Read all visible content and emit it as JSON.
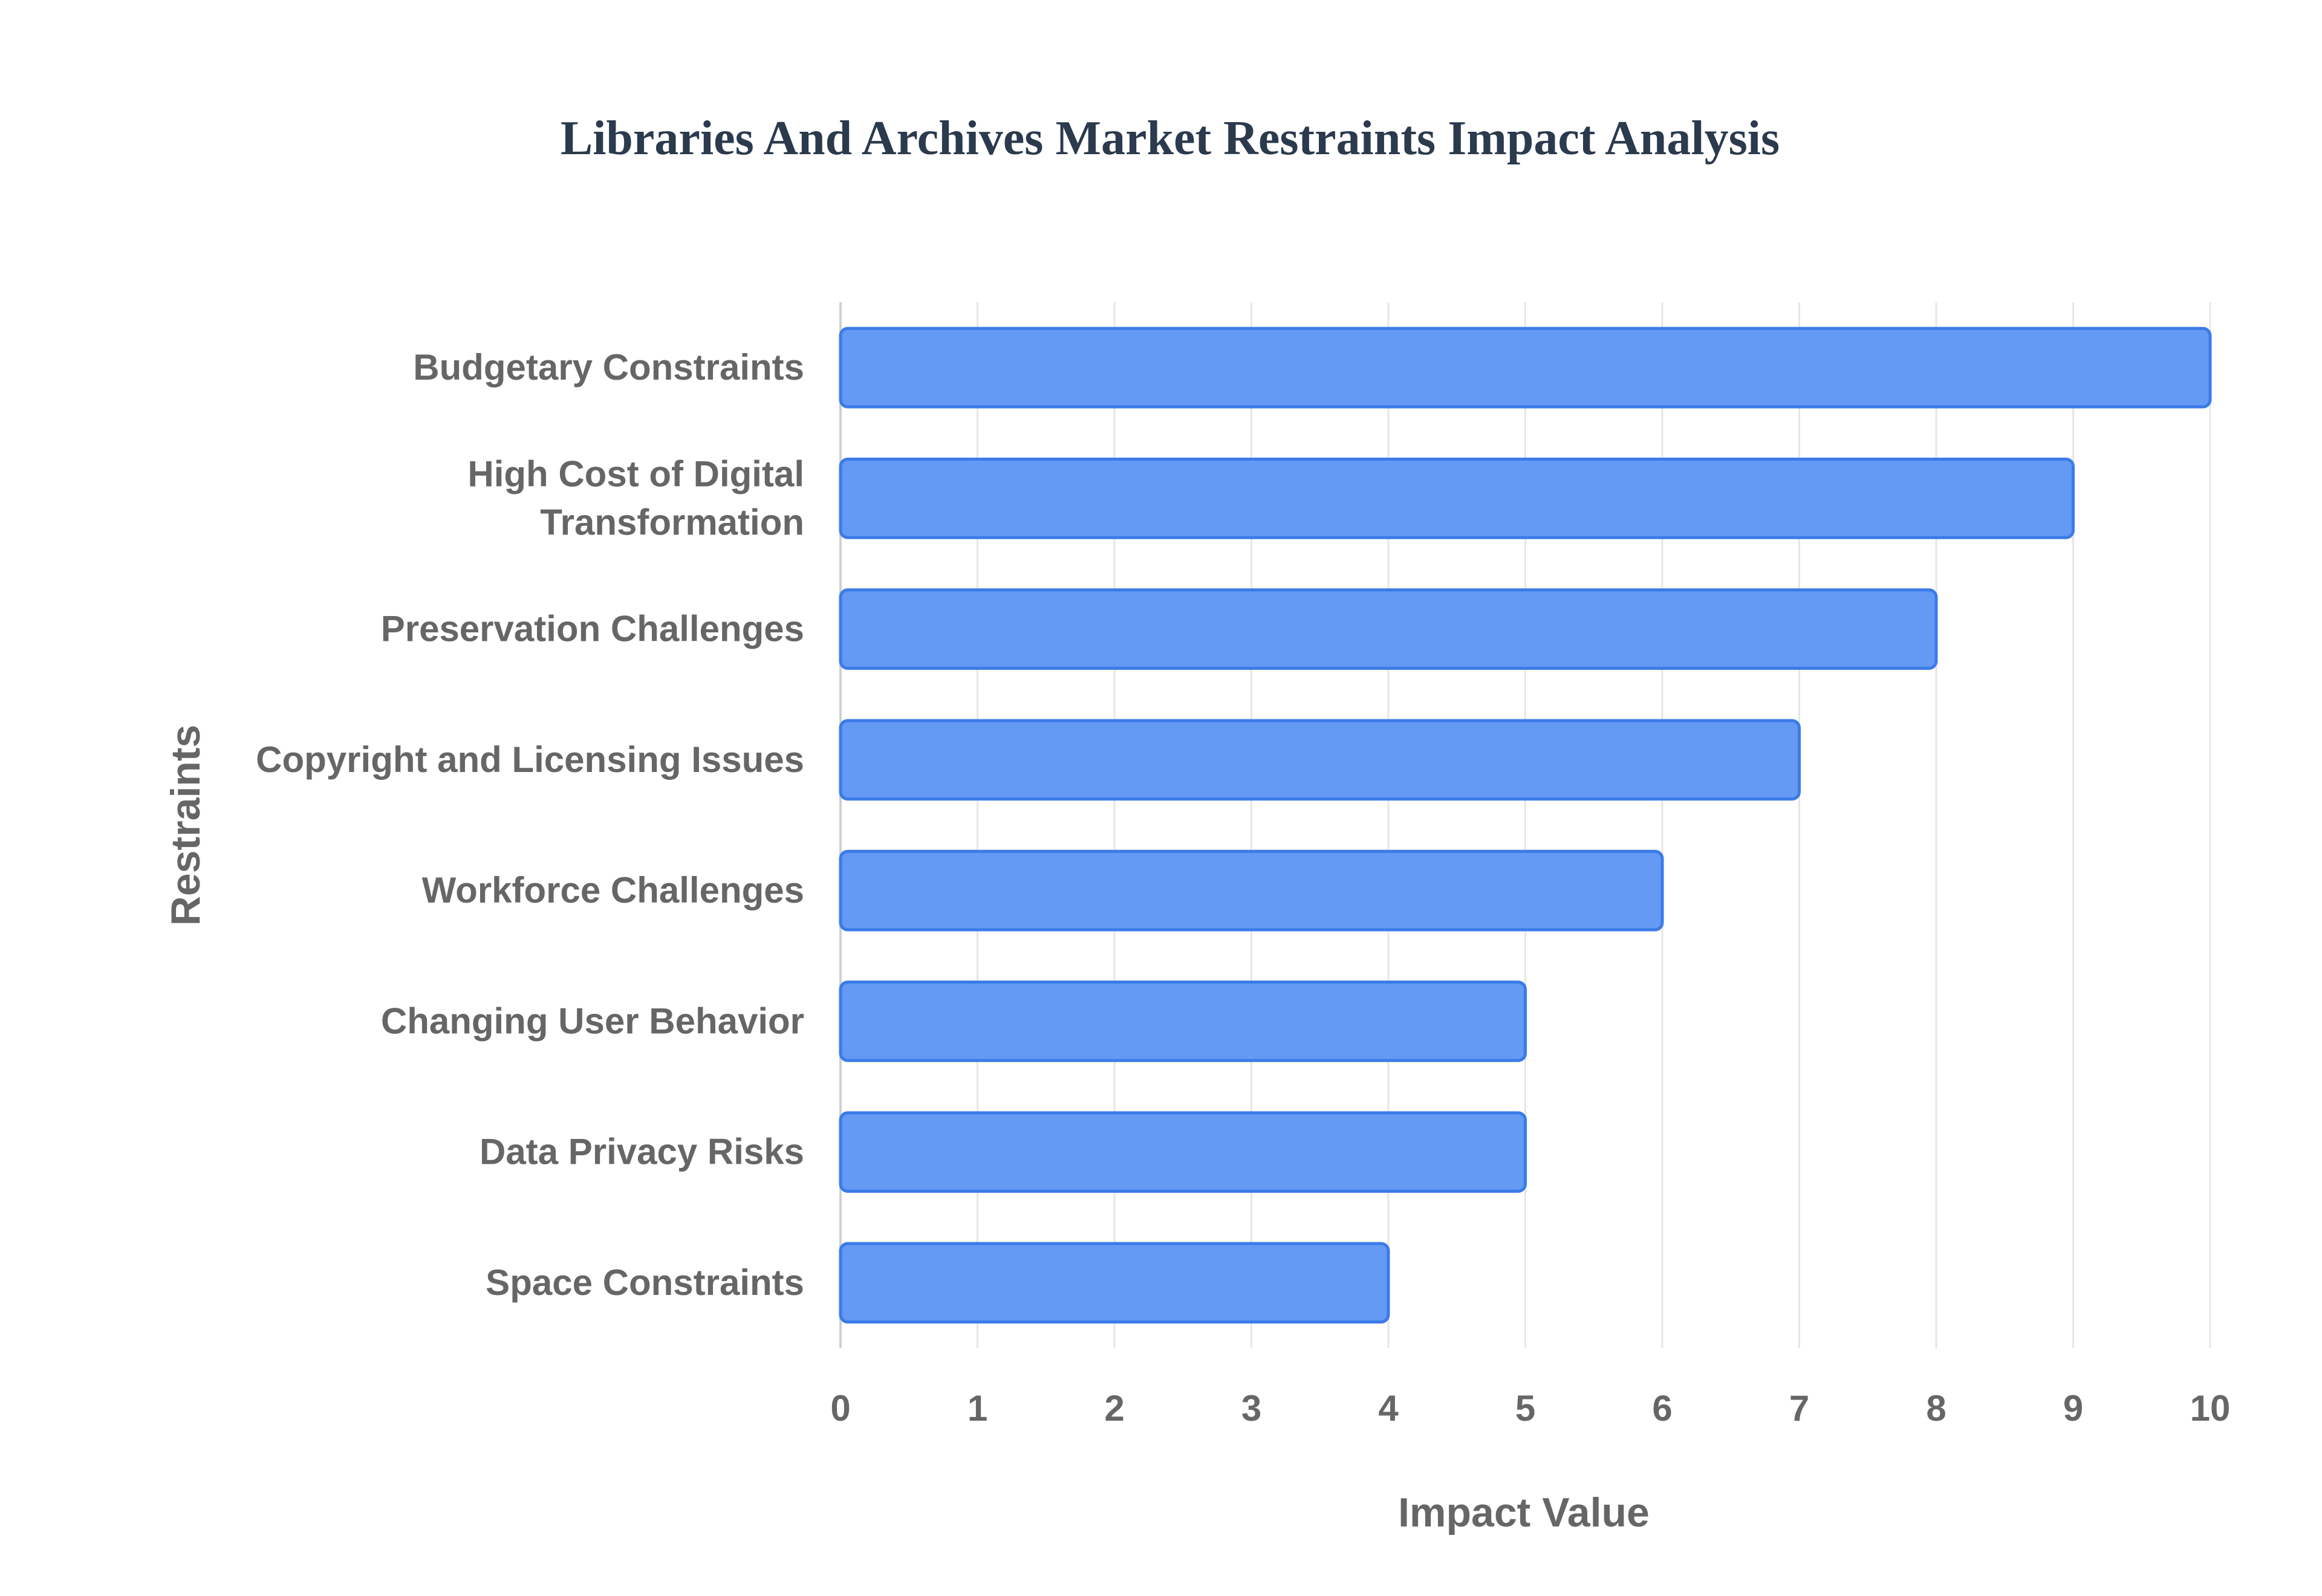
{
  "chart_data": {
    "type": "bar",
    "orientation": "horizontal",
    "title": "Libraries And Archives Market Restraints Impact Analysis",
    "xlabel": "Impact Value",
    "ylabel": "Restraints",
    "xlim": [
      0,
      10
    ],
    "ticks": [
      0,
      1,
      2,
      3,
      4,
      5,
      6,
      7,
      8,
      9,
      10
    ],
    "grid": true,
    "legend": "none",
    "bar_color": "#6499f4",
    "bar_border_color": "#3b7be8",
    "categories": [
      [
        "Budgetary Constraints"
      ],
      [
        "High Cost of Digital",
        "Transformation"
      ],
      [
        "Preservation Challenges"
      ],
      [
        "Copyright and Licensing Issues"
      ],
      [
        "Workforce Challenges"
      ],
      [
        "Changing User Behavior"
      ],
      [
        "Data Privacy Risks"
      ],
      [
        "Space Constraints"
      ]
    ],
    "values": [
      10,
      9,
      8,
      7,
      6,
      5,
      5,
      4
    ]
  }
}
